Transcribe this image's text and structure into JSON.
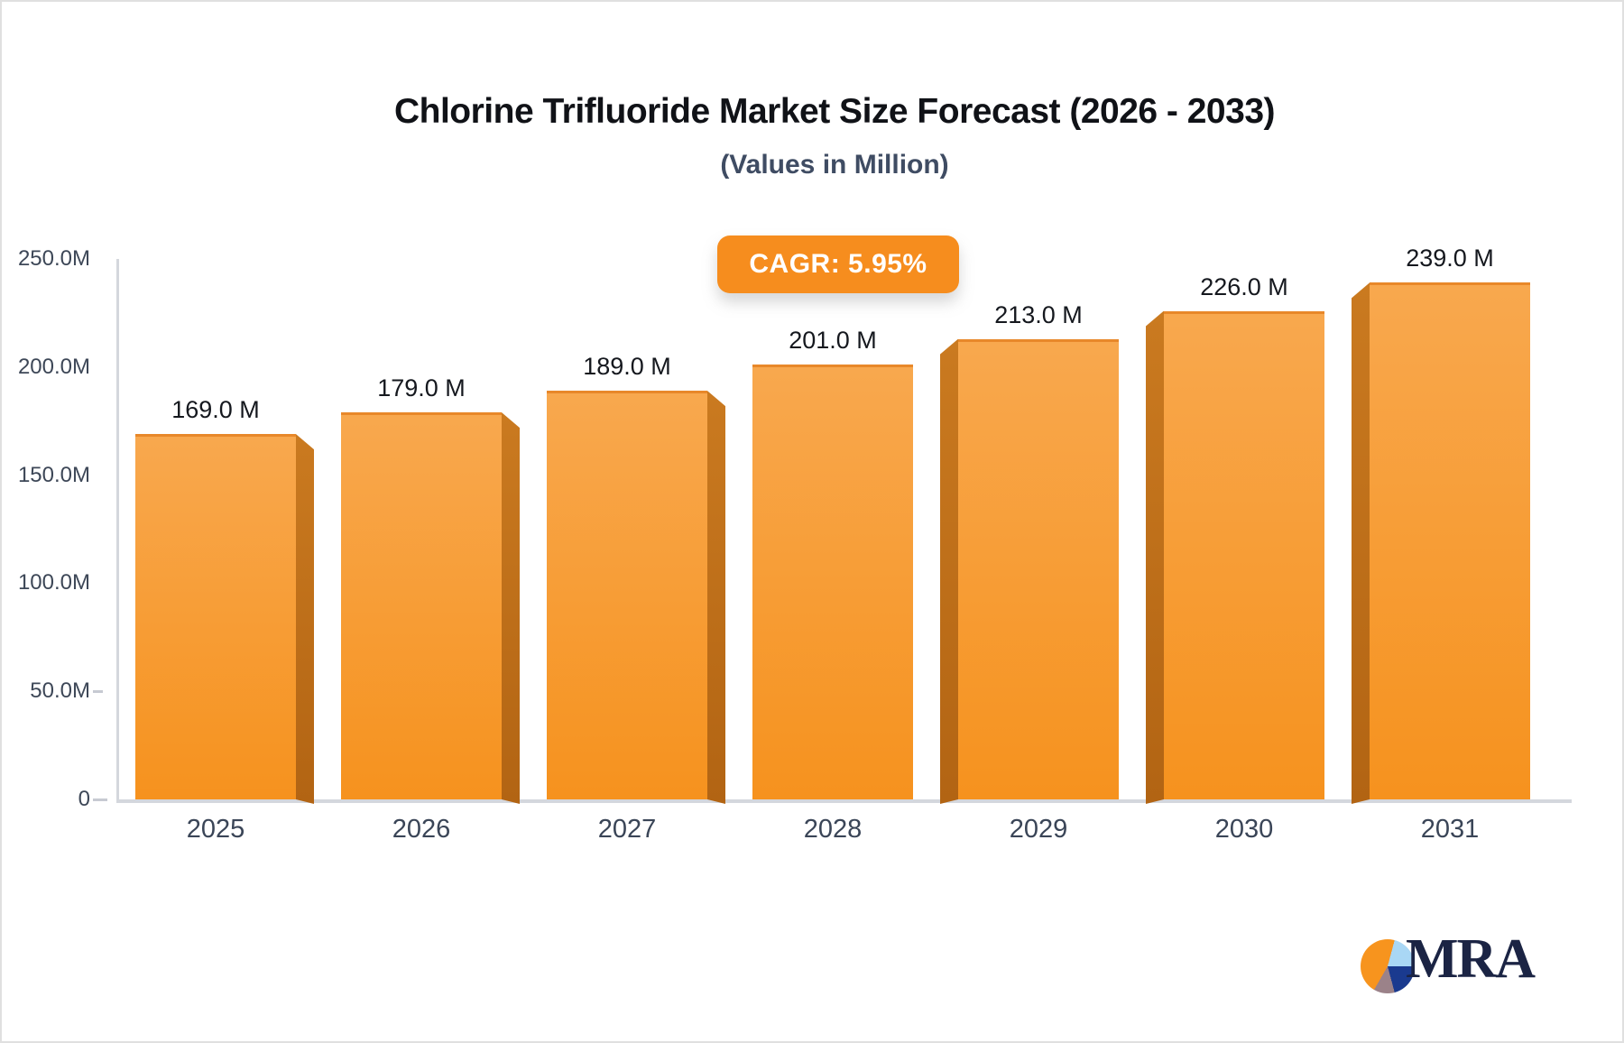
{
  "header": {
    "title": "Chlorine Trifluoride Market Size Forecast (2026 - 2033)",
    "subtitle": "(Values in Million)"
  },
  "badge": {
    "label": "CAGR: 5.95%"
  },
  "logo": {
    "text": "MRA"
  },
  "chart_data": {
    "type": "bar",
    "title": "Chlorine Trifluoride Market Size Forecast (2026 - 2033)",
    "subtitle": "(Values in Million)",
    "unit": "Million",
    "cagr_percent": 5.95,
    "categories": [
      "2025",
      "2026",
      "2027",
      "2028",
      "2029",
      "2030",
      "2031"
    ],
    "values": [
      169,
      179,
      189,
      201,
      213,
      226,
      239
    ],
    "bar_labels": [
      "169.0 M",
      "179.0 M",
      "189.0 M",
      "201.0 M",
      "213.0 M",
      "226.0 M",
      "239.0 M"
    ],
    "y_ticks": [
      {
        "label": "250.0M",
        "value": 250
      },
      {
        "label": "200.0M",
        "value": 200
      },
      {
        "label": "150.0M",
        "value": 150
      },
      {
        "label": "100.0M",
        "value": 100
      },
      {
        "label": "50.0M",
        "value": 50
      },
      {
        "label": "0",
        "value": 0
      }
    ],
    "ylim": [
      0,
      250
    ],
    "grid": false,
    "legend": null,
    "xlabel": "",
    "ylabel": ""
  },
  "colors": {
    "bar_face_top": "#f8a84e",
    "bar_face_bottom": "#f6921e",
    "bar_face_edge": "#e8882a",
    "bar_side_top": "#ca7a20",
    "bar_side_bottom": "#b26413",
    "axis_line": "#d4d7dd",
    "tick_dash": "#c7cad2",
    "tick_label": "#3d4757",
    "value_label": "#15181e",
    "title": "#101217",
    "subtitle": "#3f4c63",
    "badge_bg": "#f68d1e",
    "badge_text": "#ffffff",
    "logo_navy": "#1b2444",
    "logo_pie_orange": "#f7941e",
    "logo_pie_lightblue": "#a9d7f5",
    "logo_pie_navy": "#1a3a8f",
    "logo_pie_mauve": "#9b8289"
  }
}
